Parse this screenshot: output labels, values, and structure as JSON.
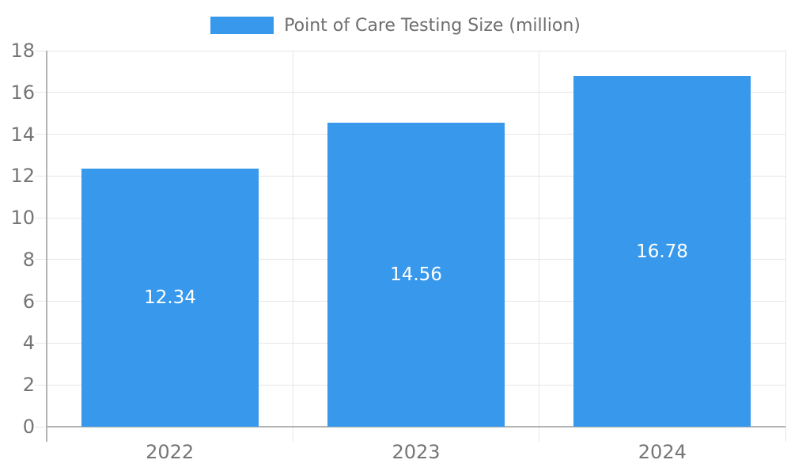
{
  "legend": {
    "label": "Point of Care Testing Size (million)"
  },
  "chart_data": {
    "type": "bar",
    "title": "Point of Care Testing Size (million)",
    "categories": [
      "2022",
      "2023",
      "2024"
    ],
    "series": [
      {
        "name": "Point of Care Testing Size (million)",
        "values": [
          12.34,
          14.56,
          16.78
        ]
      }
    ],
    "data_labels": [
      "12.34",
      "14.56",
      "16.78"
    ],
    "xlabel": "",
    "ylabel": "",
    "ylim": [
      0,
      18
    ],
    "yticks": [
      0,
      2,
      4,
      6,
      8,
      10,
      12,
      14,
      16,
      18
    ],
    "grid": true,
    "legend_position": "top-center",
    "colors": {
      "bar": "#3899ec",
      "data_label": "#ffffff",
      "tick_text": "#757575",
      "legend_text": "#6e6e6e",
      "grid": "#e6e6e6",
      "axis": "#b3b3b3",
      "background": "#ffffff"
    }
  }
}
